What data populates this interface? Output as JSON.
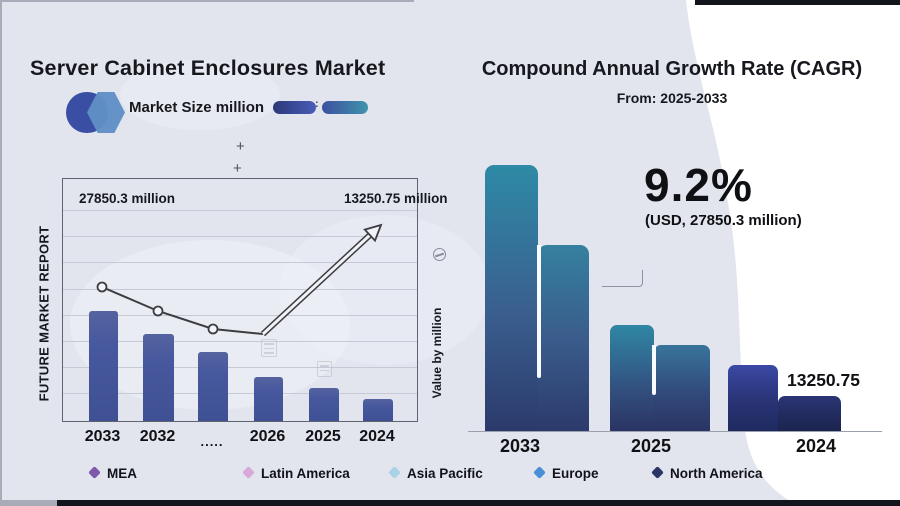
{
  "page": {
    "background": "#e2e5ee",
    "white_wedge": "#ffffff",
    "frame_dark": "#13151c"
  },
  "header": {
    "title": "Server Cabinet Enclosures Market",
    "subtitle_label": "Market Size million",
    "ratio_separator": ":",
    "plus_mark": "+"
  },
  "left_panel": {
    "annotation_left": "27850.3 million",
    "annotation_right": "13250.75 million",
    "side_watermark": "FUTURE MARKET REPORT",
    "value_axis_label": "Value by million"
  },
  "right_panel": {
    "title": "Compound Annual Growth Rate (CAGR)",
    "subtitle": "From: 2025-2033",
    "stat": "9.2%",
    "stat_note": "(USD, 27850.3 million)",
    "value_label": "13250.75"
  },
  "legend": {
    "items": [
      {
        "label": "MEA",
        "color": "#7d58ab"
      },
      {
        "label": "Latin America",
        "color": "#d8a9d8"
      },
      {
        "label": "Asia Pacific",
        "color": "#a9d2e8"
      },
      {
        "label": "Europe",
        "color": "#4a8fd5"
      },
      {
        "label": "North America",
        "color": "#2a3565"
      }
    ]
  },
  "chart_data": [
    {
      "id": "market-size-by-year",
      "type": "bar",
      "title": "Market Size million",
      "categories": [
        "2033",
        "2032",
        ".....",
        "2026",
        "2025",
        "2024"
      ],
      "values": [
        100,
        79,
        63,
        40,
        30,
        20
      ],
      "values_note": "relative heights; numeric axis not labeled in figure",
      "annotations": {
        "top_left": "27850.3 million",
        "top_right": "13250.75 million"
      },
      "overlay_line": {
        "description": "declining line with 3 circle markers over 2033-2026, then outlined arrow rising to top right",
        "marker_points_rel": [
          [
            0.11,
            0.56
          ],
          [
            0.27,
            0.46
          ],
          [
            0.42,
            0.39
          ]
        ],
        "arrow_from_rel": [
          0.56,
          0.36
        ],
        "arrow_to_rel": [
          0.89,
          0.81
        ]
      },
      "ylabel": "Value by million",
      "grid": true,
      "bar_color": "#47589e"
    },
    {
      "id": "cagr-by-year",
      "type": "bar",
      "title": "Compound Annual Growth Rate (CAGR)",
      "subtitle": "From: 2025-2033",
      "stat": "9.2%",
      "stat_note": "(USD, 27850.3 million)",
      "categories": [
        "2033",
        "2025",
        "2024"
      ],
      "series": [
        {
          "name": "bar-a",
          "values": [
            100,
            40,
            25
          ]
        },
        {
          "name": "bar-b",
          "values": [
            70,
            32.5,
            13
          ]
        }
      ],
      "values_note": "relative heights; only 2024 labeled 13250.75",
      "data_label": {
        "text": "13250.75",
        "category": "2024"
      },
      "colors": {
        "teal_top": "#2e8aa6",
        "navy_bottom": "#2b3a6b",
        "blue_2024": "#3a49a4",
        "dark_2024": "#1d2656"
      }
    }
  ]
}
